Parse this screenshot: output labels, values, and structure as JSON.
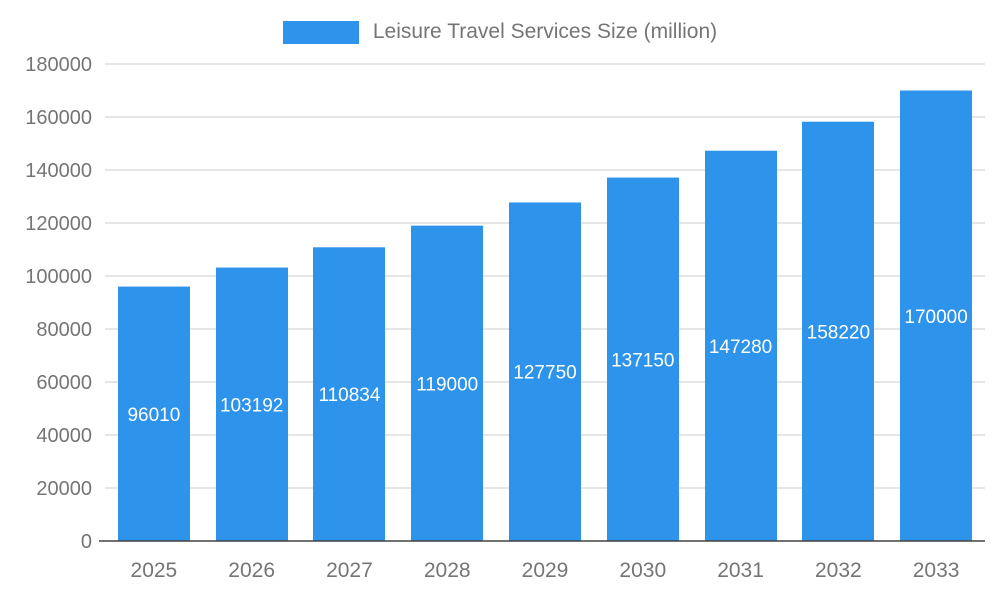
{
  "legend": {
    "label": "Leisure Travel Services Size (million)",
    "swatch_color": "#2e93ea"
  },
  "chart_data": {
    "type": "bar",
    "categories": [
      "2025",
      "2026",
      "2027",
      "2028",
      "2029",
      "2030",
      "2031",
      "2032",
      "2033"
    ],
    "values": [
      96010,
      103192,
      110834,
      119000,
      127750,
      137150,
      147280,
      158220,
      170000
    ],
    "title": "Leisure Travel Services Size (million)",
    "xlabel": "",
    "ylabel": "",
    "ylim": [
      0,
      180000
    ],
    "ytick_step": 20000,
    "ytick_labels": [
      "0",
      "20000",
      "40000",
      "60000",
      "80000",
      "100000",
      "120000",
      "140000",
      "160000",
      "180000"
    ],
    "bar_color": "#2e93ea",
    "value_label_color": "#ffffff",
    "axis_text_color": "#757575",
    "gridline_color": "#cccccc",
    "baseline_color": "#424242",
    "grid": true,
    "legend_position": "top"
  }
}
